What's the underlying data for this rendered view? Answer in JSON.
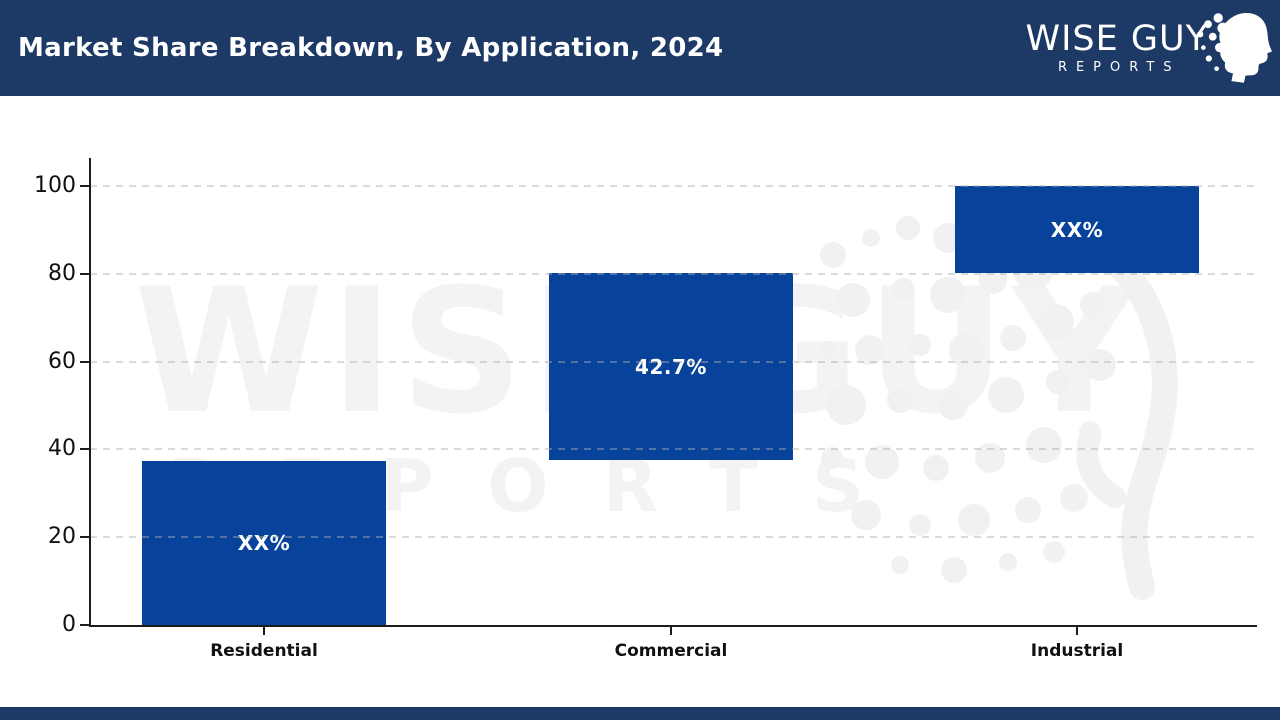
{
  "header": {
    "title": "Market Share Breakdown, By Application, 2024",
    "logo": {
      "line1": "WISE GUY",
      "line2": "REPORTS"
    }
  },
  "watermark": {
    "line1": "WISE GUY",
    "line2": "REPORTS"
  },
  "chart_data": {
    "type": "bar",
    "variant": "floating-segment-breakdown",
    "title": "Market Share Breakdown, By Application, 2024",
    "categories": [
      "Residential",
      "Commercial",
      "Industrial"
    ],
    "bars": [
      {
        "category": "Residential",
        "start": 0,
        "end": 37.4,
        "label": "XX%"
      },
      {
        "category": "Commercial",
        "start": 37.4,
        "end": 80.1,
        "label": "42.7%",
        "value": 42.7
      },
      {
        "category": "Industrial",
        "start": 80.1,
        "end": 100,
        "label": "XX%"
      }
    ],
    "yticks": [
      0,
      20,
      40,
      60,
      80,
      100
    ],
    "ylim": [
      0,
      106
    ],
    "grid": "horizontal-dashed",
    "legend": "none",
    "bar_color": "#08439b",
    "bar_label_color": "#ffffff",
    "axis_color": "#1c1c1c"
  },
  "colors": {
    "header_bg": "#1d3a67",
    "footer_bg": "#1d3a67",
    "bar": "#08439b",
    "watermark": "#f3f3f3",
    "grid": "#acacac",
    "text_dark": "#111111",
    "text_light": "#ffffff"
  }
}
